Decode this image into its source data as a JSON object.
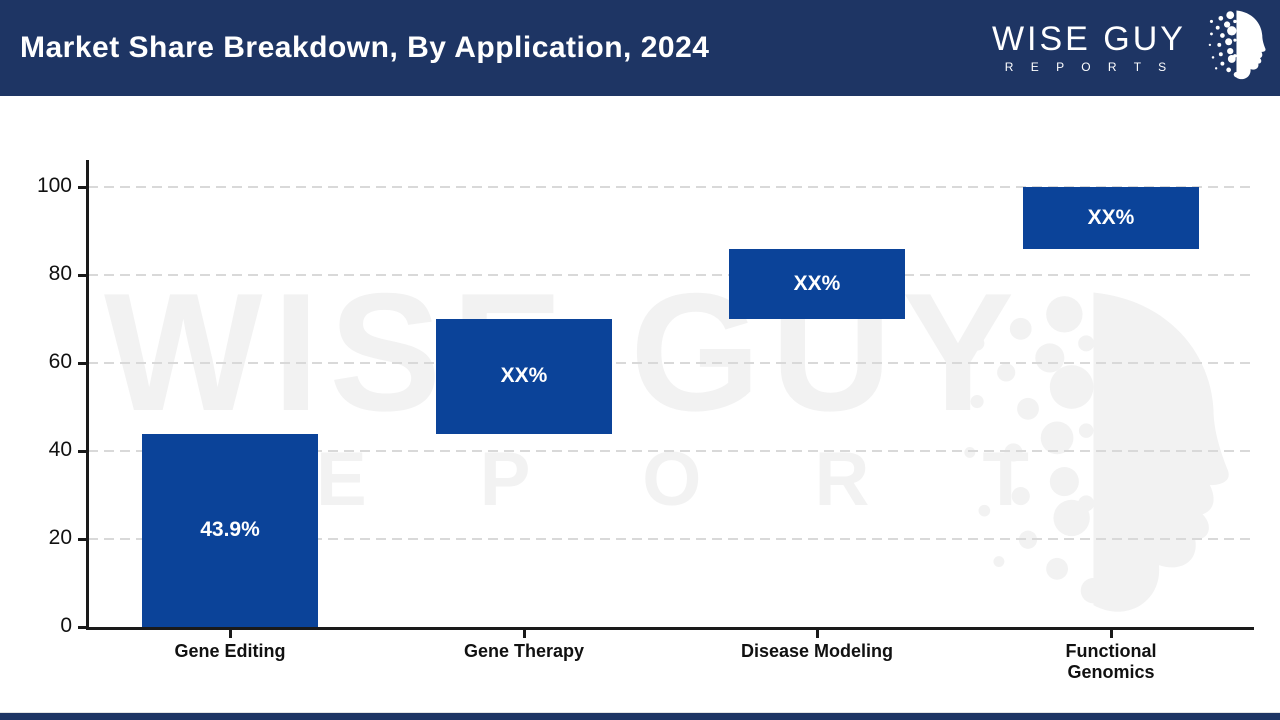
{
  "header": {
    "title": "Market Share Breakdown, By Application, 2024",
    "logo": {
      "name": "WISE GUY",
      "sub": "R E P O R T S"
    }
  },
  "watermark": {
    "line1": "WISE GUY",
    "line2": "R E P O R T S"
  },
  "chart_data": {
    "type": "bar",
    "subtype": "waterfall",
    "title": "Market Share Breakdown, By Application, 2024",
    "categories": [
      "Gene Editing",
      "Gene Therapy",
      "Disease Modeling",
      "Functional Genomics"
    ],
    "series": [
      {
        "name": "Market share (%)",
        "segments": [
          {
            "category": "Gene Editing",
            "start": 0,
            "end": 43.9,
            "label": "43.9%"
          },
          {
            "category": "Gene Therapy",
            "start": 43.9,
            "end": 70,
            "label": "XX%"
          },
          {
            "category": "Disease Modeling",
            "start": 70,
            "end": 86,
            "label": "XX%"
          },
          {
            "category": "Functional Genomics",
            "start": 86,
            "end": 100,
            "label": "XX%"
          }
        ]
      }
    ],
    "yticks": [
      0,
      20,
      40,
      60,
      80,
      100
    ],
    "ylim": [
      0,
      105
    ],
    "xlabel": "",
    "ylabel": "",
    "grid": "horizontal-dashed",
    "legend_position": "none",
    "bar_color": "#0b4399",
    "bar_label_color": "#ffffff"
  },
  "colors": {
    "header_bg": "#1e3564",
    "footer_bg": "#1e3564",
    "bar": "#0b4399",
    "grid": "#d9d9d9",
    "axis": "#1a1a1a",
    "tick_label": "#111111",
    "watermark": "#f2f2f2"
  }
}
